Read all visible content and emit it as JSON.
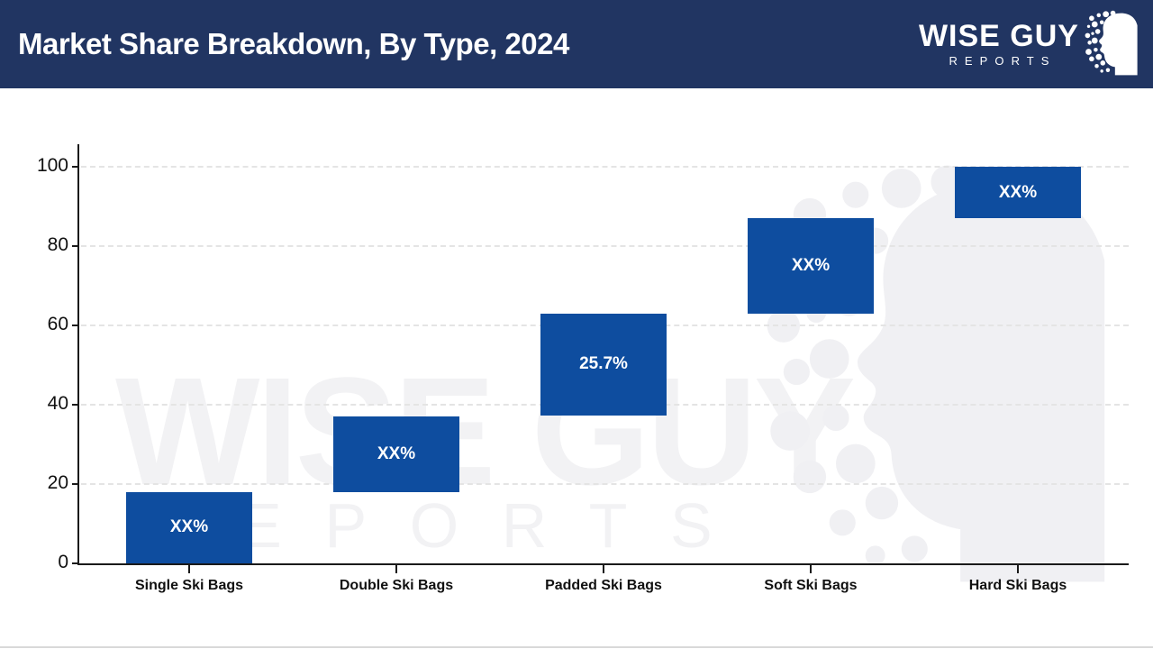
{
  "header": {
    "title": "Market Share Breakdown, By Type, 2024",
    "logo_line1": "WISE GUY",
    "logo_line2": "REPORTS"
  },
  "watermark": {
    "line1": "WISE GUY",
    "line2": "REPORTS"
  },
  "colors": {
    "header_bg": "#213562",
    "bar": "#0e4d9f",
    "bar_label_text": "#ffffff",
    "axis": "#1a1a1a",
    "gridline": "#e4e4e4",
    "watermark": "#f2f2f4",
    "bottom_line": "#d9d9d9"
  },
  "chart_data": {
    "type": "bar",
    "subtype": "floating-waterfall",
    "title": "Market Share Breakdown, By Type, 2024",
    "categories": [
      "Single Ski Bags",
      "Double Ski Bags",
      "Padded Ski Bags",
      "Soft Ski Bags",
      "Hard Ski Bags"
    ],
    "bars": [
      {
        "category": "Single Ski Bags",
        "start": 0,
        "end": 18,
        "label": "XX%"
      },
      {
        "category": "Double Ski Bags",
        "start": 18,
        "end": 37,
        "label": "XX%"
      },
      {
        "category": "Padded Ski Bags",
        "start": 37.3,
        "end": 63,
        "label": "25.7%"
      },
      {
        "category": "Soft Ski Bags",
        "start": 63,
        "end": 87,
        "label": "XX%"
      },
      {
        "category": "Hard Ski Bags",
        "start": 87,
        "end": 100,
        "label": "XX%"
      }
    ],
    "y_ticks": [
      0,
      20,
      40,
      60,
      80,
      100
    ],
    "ylim": [
      0,
      100
    ],
    "xlabel": "",
    "ylabel": "",
    "grid": "horizontal-dashed",
    "legend": false
  }
}
